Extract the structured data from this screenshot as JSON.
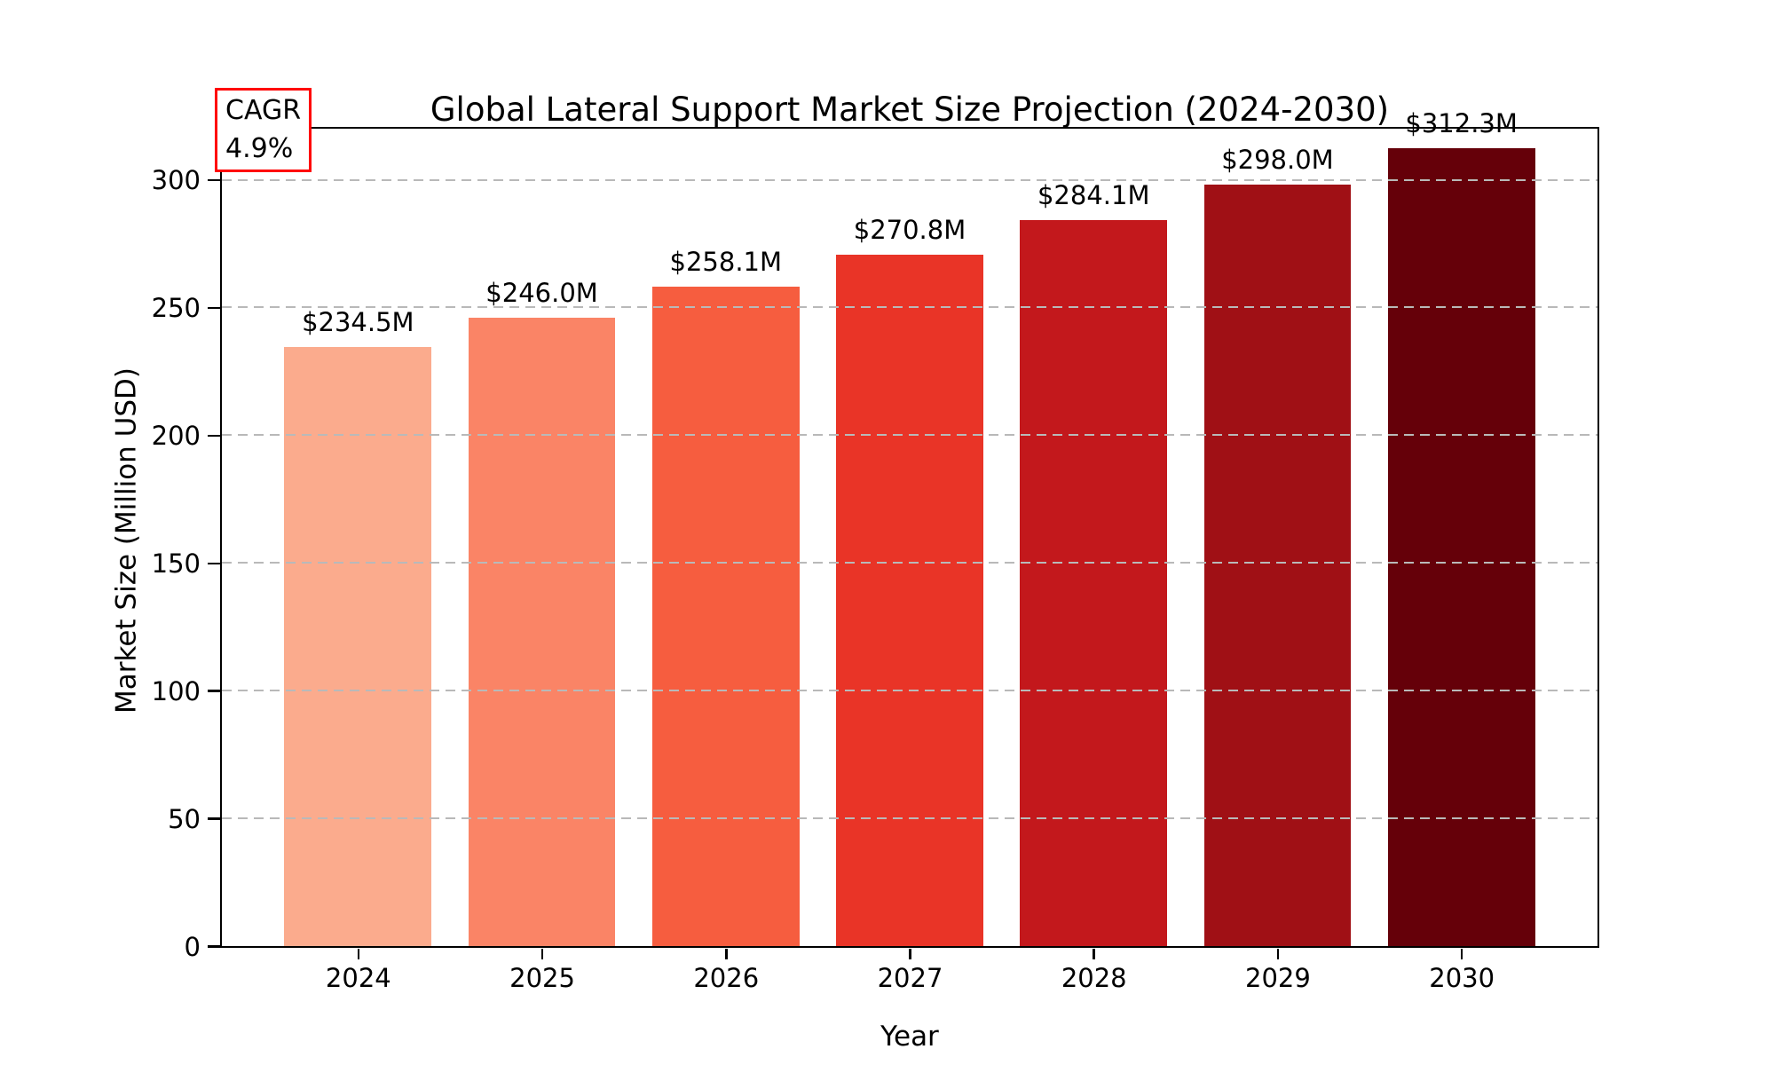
{
  "chart_data": {
    "type": "bar",
    "title": "Global Lateral Support Market Size Projection (2024-2030)",
    "xlabel": "Year",
    "ylabel": "Market Size (Million USD)",
    "categories": [
      "2024",
      "2025",
      "2026",
      "2027",
      "2028",
      "2029",
      "2030"
    ],
    "values": [
      234.5,
      246.0,
      258.1,
      270.8,
      284.1,
      298.0,
      312.3
    ],
    "bar_labels": [
      "$234.5M",
      "$246.0M",
      "$258.1M",
      "$270.8M",
      "$284.1M",
      "$298.0M",
      "$312.3M"
    ],
    "bar_colors": [
      "#fbab8d",
      "#fa8466",
      "#f65d3f",
      "#e93427",
      "#c3181c",
      "#a01015",
      "#650009"
    ],
    "ylim": [
      0,
      320
    ],
    "yticks": [
      0,
      50,
      100,
      150,
      200,
      250,
      300
    ],
    "grid": "horizontal-dashed-drawn-above-bars",
    "gridline_color": "#b9b9b9",
    "legend": "none",
    "annotation": {
      "line1": "CAGR",
      "line2": "4.9%",
      "border_color": "#ff0000",
      "background": "#ffffff"
    }
  }
}
